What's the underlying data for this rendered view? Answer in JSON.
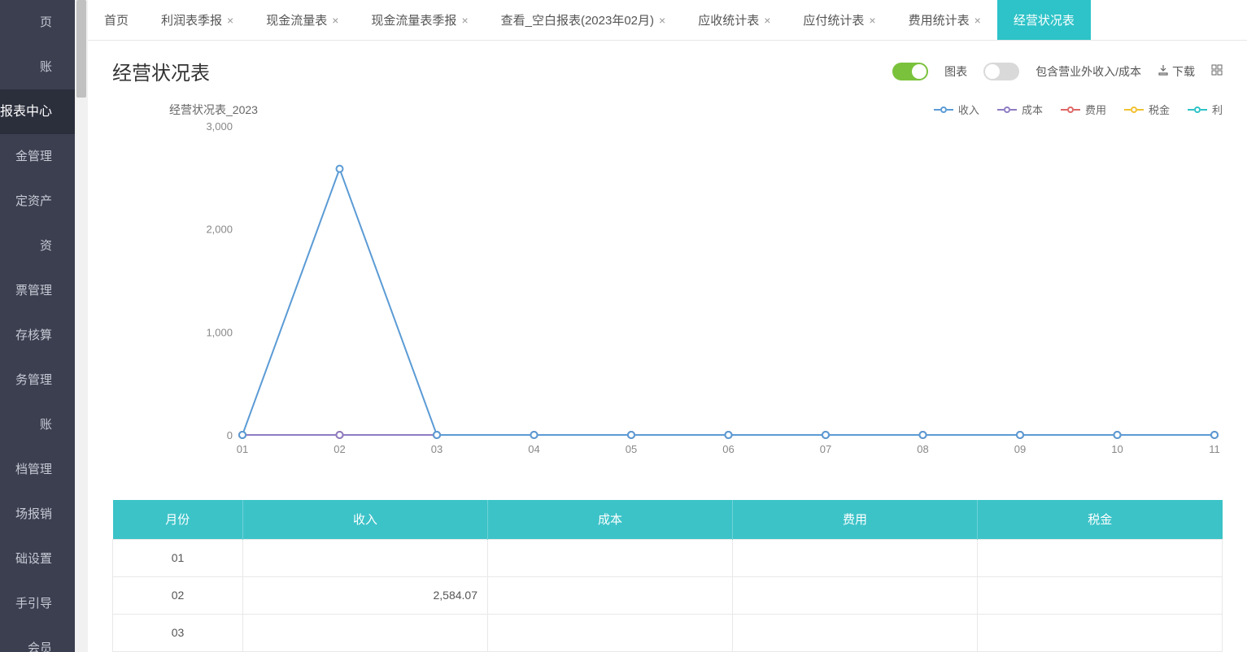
{
  "sidebar": {
    "items": [
      {
        "label": "页"
      },
      {
        "label": "账"
      },
      {
        "label": "报表中心",
        "active": true
      },
      {
        "label": "金管理"
      },
      {
        "label": "定资产"
      },
      {
        "label": "资"
      },
      {
        "label": "票管理"
      },
      {
        "label": "存核算"
      },
      {
        "label": "务管理"
      },
      {
        "label": "账"
      },
      {
        "label": "档管理"
      },
      {
        "label": "场报销"
      },
      {
        "label": "础设置"
      },
      {
        "label": "手引导"
      },
      {
        "label": "会员"
      }
    ]
  },
  "tabs": [
    {
      "label": "首页",
      "closable": false
    },
    {
      "label": "利润表季报",
      "closable": true
    },
    {
      "label": "现金流量表",
      "closable": true
    },
    {
      "label": "现金流量表季报",
      "closable": true
    },
    {
      "label": "查看_空白报表(2023年02月)",
      "closable": true
    },
    {
      "label": "应收统计表",
      "closable": true
    },
    {
      "label": "应付统计表",
      "closable": true
    },
    {
      "label": "费用统计表",
      "closable": true
    },
    {
      "label": "经营状况表",
      "closable": false,
      "active": true
    }
  ],
  "header": {
    "title": "经营状况表",
    "toggle_chart_label": "图表",
    "toggle_extra_label": "包含营业外收入/成本",
    "download_label": "下载"
  },
  "chart": {
    "title": "经营状况表_2023",
    "type": "line",
    "categories": [
      "01",
      "02",
      "03",
      "04",
      "05",
      "06",
      "07",
      "08",
      "09",
      "10",
      "11"
    ],
    "series": [
      {
        "name": "收入",
        "color": "#5b9bd5",
        "values": [
          0,
          2584.07,
          0,
          0,
          0,
          0,
          0,
          0,
          0,
          0,
          0
        ]
      },
      {
        "name": "成本",
        "color": "#8e7cc3",
        "values": [
          0,
          0,
          0,
          0,
          0,
          0,
          0,
          0,
          0,
          0,
          0
        ]
      },
      {
        "name": "费用",
        "color": "#e06666",
        "values": [
          0,
          0,
          0,
          0,
          0,
          0,
          0,
          0,
          0,
          0,
          0
        ]
      },
      {
        "name": "税金",
        "color": "#f1c232",
        "values": [
          0,
          0,
          0,
          0,
          0,
          0,
          0,
          0,
          0,
          0,
          0
        ]
      },
      {
        "name": "利",
        "color": "#2dc3c8",
        "values": [
          0,
          0,
          0,
          0,
          0,
          0,
          0,
          0,
          0,
          0,
          0
        ]
      }
    ],
    "ylim": [
      0,
      3000
    ],
    "ytick_step": 1000,
    "yticks": [
      "0",
      "1,000",
      "2,000",
      "3,000"
    ],
    "grid_color": "#eeeeee",
    "axis_color": "#cccccc",
    "label_color": "#888888",
    "marker_radius": 4,
    "line_width": 2,
    "label_fontsize": 13
  },
  "table": {
    "columns": [
      "月份",
      "收入",
      "成本",
      "费用",
      "税金"
    ],
    "rows": [
      {
        "month": "01",
        "income": "",
        "cost": "",
        "expense": "",
        "tax": ""
      },
      {
        "month": "02",
        "income": "2,584.07",
        "cost": "",
        "expense": "",
        "tax": ""
      },
      {
        "month": "03",
        "income": "",
        "cost": "",
        "expense": "",
        "tax": ""
      }
    ]
  }
}
